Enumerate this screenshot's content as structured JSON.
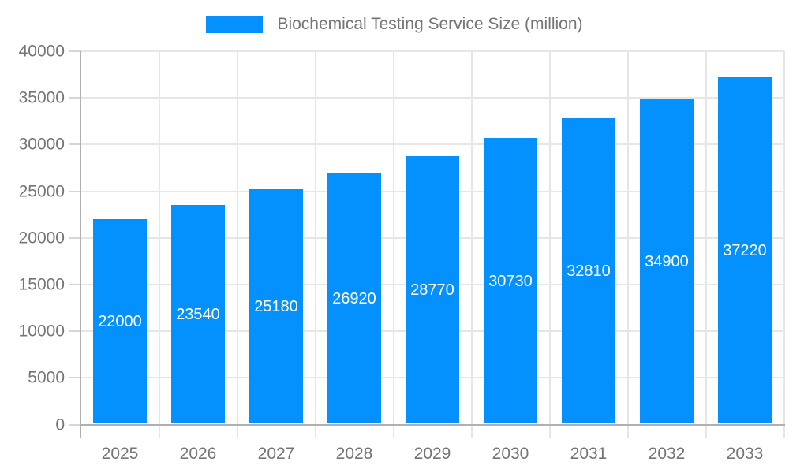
{
  "chart_data": {
    "type": "bar",
    "title": "",
    "legend": "Biochemical Testing Service Size (million)",
    "legend_position": "top",
    "categories": [
      "2025",
      "2026",
      "2027",
      "2028",
      "2029",
      "2030",
      "2031",
      "2032",
      "2033"
    ],
    "values": [
      22000,
      23540,
      25180,
      26920,
      28770,
      30730,
      32810,
      34900,
      37220
    ],
    "bar_value_labels": [
      "22000",
      "23540",
      "25180",
      "26920",
      "28770",
      "30730",
      "32810",
      "34900",
      "37220"
    ],
    "xlabel": "",
    "ylabel": "",
    "ylim": [
      0,
      40000
    ],
    "ytick_step": 5000,
    "ytick_labels": [
      "0",
      "5000",
      "10000",
      "15000",
      "20000",
      "25000",
      "30000",
      "35000",
      "40000"
    ],
    "grid": true,
    "colors": {
      "bar": "#0591fd",
      "bar_label_text": "#ffffff",
      "gridline": "#e6e6e6",
      "tick_mark": "#d6d6d6",
      "axis_line": "#b0b0b0",
      "axis_text": "#757575",
      "background": "#ffffff"
    }
  }
}
